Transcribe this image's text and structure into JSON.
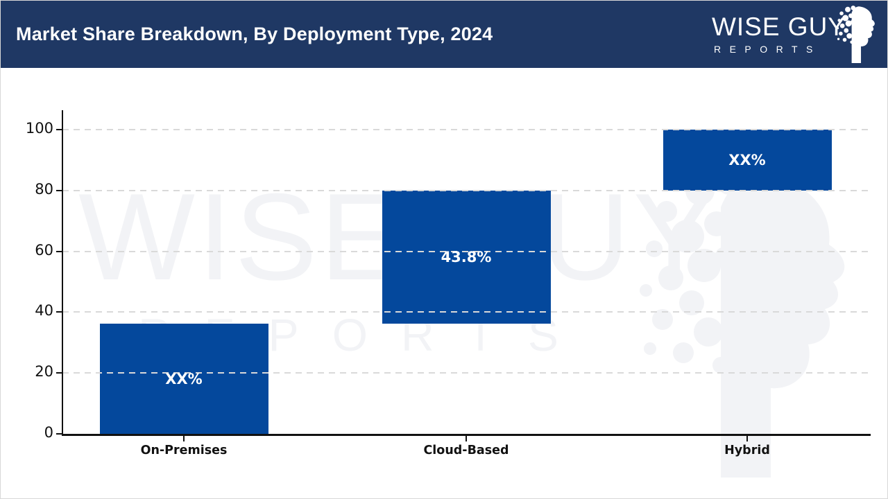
{
  "header": {
    "title": "Market Share Breakdown, By Deployment Type, 2024"
  },
  "logo": {
    "wordmark": "WISE GUY",
    "tagline": "REPORTS"
  },
  "chart_data": {
    "type": "bar",
    "variant": "waterfall",
    "title": "Market Share Breakdown, By Deployment Type, 2024",
    "categories": [
      "On-Premises",
      "Cloud-Based",
      "Hybrid"
    ],
    "bars": [
      {
        "category": "On-Premises",
        "start": 0,
        "end": 36.2,
        "label": "XX%"
      },
      {
        "category": "Cloud-Based",
        "start": 36.2,
        "end": 80.0,
        "label": "43.8%"
      },
      {
        "category": "Hybrid",
        "start": 80.0,
        "end": 100.0,
        "label": "XX%"
      }
    ],
    "xlabel": "",
    "ylabel": "",
    "ylim": [
      0,
      100
    ],
    "y_ticks": [
      0,
      20,
      40,
      60,
      80,
      100
    ],
    "grid": "horizontal-dashed",
    "grid_on_top_of_bars": true,
    "legend": "none",
    "bar_label_color": "#ffffff"
  },
  "colors": {
    "header_bg": "#1f3864",
    "bar": "#04489c",
    "gridline": "#d9d9d9",
    "axis": "#111111",
    "watermark": "#f2f3f6",
    "title_text": "#ffffff"
  }
}
